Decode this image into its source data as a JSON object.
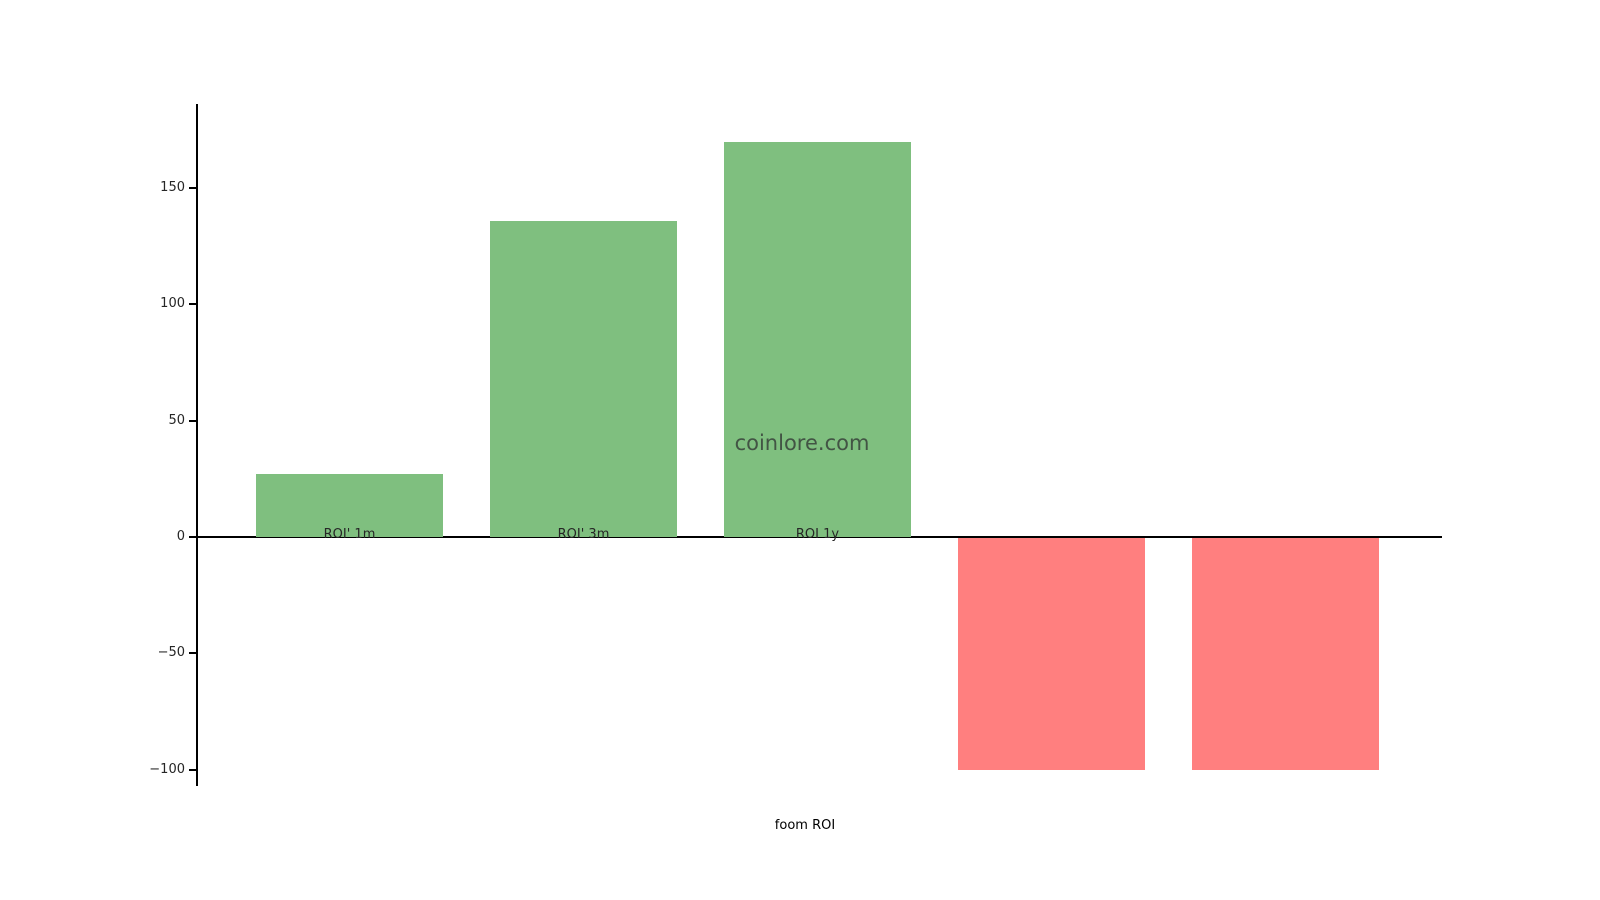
{
  "watermark": {
    "text": "coinlore.com",
    "color": "#37413a"
  },
  "chart_data": {
    "type": "bar",
    "title": "",
    "xlabel": "foom ROI",
    "ylabel": "",
    "categories": [
      "ROI' 1m",
      "ROI' 3m",
      "ROI 1y",
      "",
      ""
    ],
    "values": [
      27,
      136,
      170,
      -100,
      -100
    ],
    "yticks": [
      150,
      100,
      50,
      0,
      -50,
      -100
    ],
    "ylim": [
      -107,
      186
    ],
    "grid": false,
    "legend": "none",
    "positive_color": "#7fbf7f",
    "negative_color": "#ff7f7f",
    "axis_color": "#000000",
    "tick_label_color": "#262626"
  }
}
